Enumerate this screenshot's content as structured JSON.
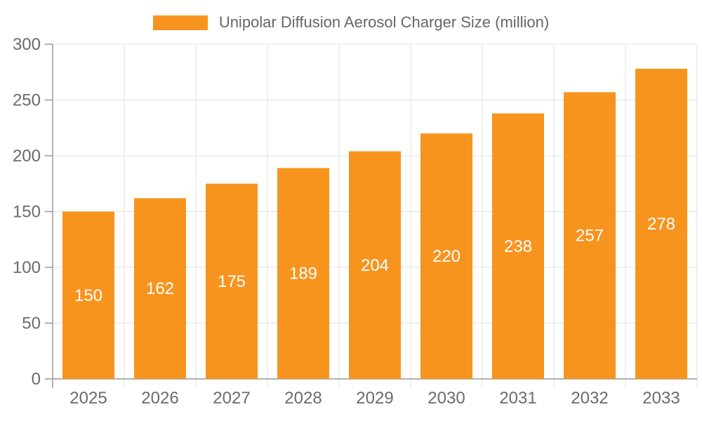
{
  "legend": {
    "swatch_icon": "orange-series-swatch"
  },
  "colors": {
    "bar": "#F7941E",
    "axis": "#999999",
    "grid": "#E1E1E1",
    "tick_label": "#6B6B6B",
    "value_label": "#FFFFFF",
    "legend_text": "#666666",
    "background": "#FFFFFF"
  },
  "chart_data": {
    "type": "bar",
    "title": "Unipolar Diffusion Aerosol Charger Size (million)",
    "categories": [
      "2025",
      "2026",
      "2027",
      "2028",
      "2029",
      "2030",
      "2031",
      "2032",
      "2033"
    ],
    "values": [
      150,
      162,
      175,
      189,
      204,
      220,
      238,
      257,
      278
    ],
    "xlabel": "",
    "ylabel": "",
    "ylim": [
      0,
      300
    ],
    "ytick_step": 50,
    "ytick_labels": [
      "0",
      "50",
      "100",
      "150",
      "200",
      "250",
      "300"
    ],
    "grid": true,
    "legend_position": "top-center",
    "value_label_position": "inside-center",
    "bar_color": "#F7941E"
  }
}
